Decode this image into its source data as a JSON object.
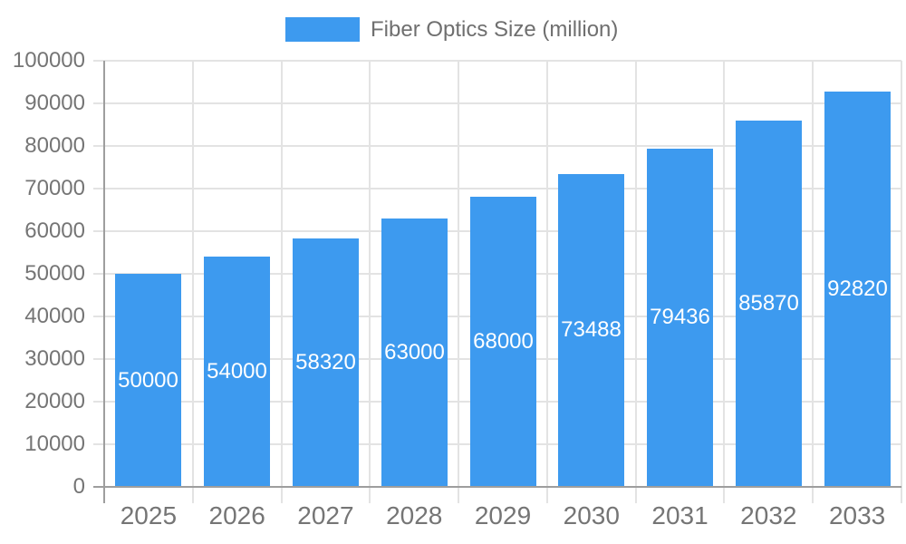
{
  "chart_data": {
    "type": "bar",
    "title": "",
    "xlabel": "",
    "ylabel": "",
    "categories": [
      "2025",
      "2026",
      "2027",
      "2028",
      "2029",
      "2030",
      "2031",
      "2032",
      "2033"
    ],
    "series": [
      {
        "name": "Fiber Optics Size (million)",
        "values": [
          50000,
          54000,
          58320,
          63000,
          68000,
          73488,
          79436,
          85870,
          92820
        ]
      }
    ],
    "ylim": [
      0,
      100000
    ],
    "ytick_step": 10000,
    "yticks": [
      0,
      10000,
      20000,
      30000,
      40000,
      50000,
      60000,
      70000,
      80000,
      90000,
      100000
    ],
    "grid": true,
    "legend_position": "top-center",
    "bar_value_labels": "inside-center",
    "colors": {
      "bar": "#3D9AEF",
      "bar_label": "#FFFFFF",
      "axis_line": "#9E9E9E",
      "gridline": "#E3E3E3",
      "tick_text": "#757575",
      "legend_text": "#6F6F6F",
      "background": "#FFFFFF"
    }
  }
}
